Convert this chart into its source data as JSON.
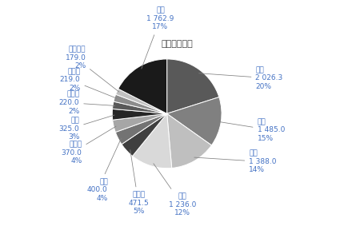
{
  "title": "产量（万吨）",
  "segments": [
    {
      "name": "美国",
      "value_str": "2 026.3",
      "pct": "20%",
      "value": 2026.3,
      "color": "#595959"
    },
    {
      "name": "中国",
      "value_str": "1 485.0",
      "pct": "15%",
      "value": 1485.0,
      "color": "#808080"
    },
    {
      "name": "巴西",
      "value_str": "1 388.0",
      "pct": "14%",
      "value": 1388.0,
      "color": "#bfbfbf"
    },
    {
      "name": "欧盟",
      "value_str": "1 236.0",
      "pct": "12%",
      "value": 1236.0,
      "color": "#d9d9d9"
    },
    {
      "name": "俄罗斯",
      "value_str": "471.5",
      "pct": "5%",
      "value": 471.5,
      "color": "#3f3f3f"
    },
    {
      "name": "印度",
      "value_str": "400.0",
      "pct": "4%",
      "value": 400.0,
      "color": "#737373"
    },
    {
      "name": "墨西哥",
      "value_str": "370.0",
      "pct": "4%",
      "value": 370.0,
      "color": "#a6a6a6"
    },
    {
      "name": "泰国",
      "value_str": "325.0",
      "pct": "3%",
      "value": 325.0,
      "color": "#262626"
    },
    {
      "name": "土耳其",
      "value_str": "220.0",
      "pct": "2%",
      "value": 220.0,
      "color": "#595959"
    },
    {
      "name": "阿根廷",
      "value_str": "219.0",
      "pct": "2%",
      "value": 219.0,
      "color": "#8c8c8c"
    },
    {
      "name": "马来西亚",
      "value_str": "179.0",
      "pct": "2%",
      "value": 179.0,
      "color": "#c0c0c0"
    },
    {
      "name": "其他",
      "value_str": "1 762.9",
      "pct": "17%",
      "value": 1762.9,
      "color": "#1a1a1a"
    }
  ],
  "label_color": "#4472c4",
  "line_color": "#808080",
  "startangle": 90,
  "background_color": "#ffffff",
  "title_fontsize": 8,
  "label_fontsize": 6.5
}
